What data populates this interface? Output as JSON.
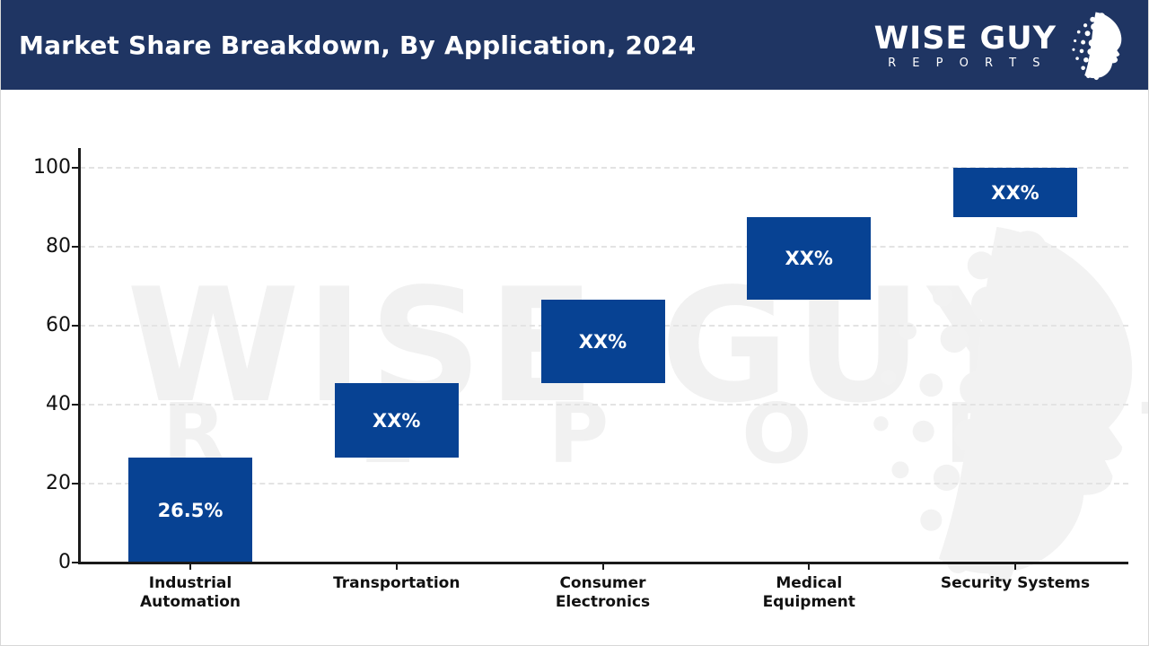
{
  "header": {
    "title": "Market Share Breakdown, By Application, 2024",
    "background_color": "#1f3563",
    "logo": {
      "line1": "WISE GUY",
      "line2": "R E P O R T S"
    }
  },
  "watermark": {
    "line1": "WISE GUY",
    "line2": "R E P O R T S"
  },
  "chart_data": {
    "type": "bar",
    "subtype": "waterfall",
    "title": "Market Share Breakdown, By Application, 2024",
    "categories": [
      "Industrial Automation",
      "Transportation",
      "Consumer Electronics",
      "Medical Equipment",
      "Security Systems"
    ],
    "segments": [
      {
        "category": "Industrial Automation",
        "start": 0,
        "end": 26.5,
        "label": "26.5%"
      },
      {
        "category": "Transportation",
        "start": 26.5,
        "end": 45.5,
        "label": "XX%"
      },
      {
        "category": "Consumer Electronics",
        "start": 45.5,
        "end": 66.5,
        "label": "XX%"
      },
      {
        "category": "Medical Equipment",
        "start": 66.5,
        "end": 87.5,
        "label": "XX%"
      },
      {
        "category": "Security Systems",
        "start": 87.5,
        "end": 100,
        "label": "XX%"
      }
    ],
    "xlabel": "",
    "ylabel": "",
    "ylim": [
      0,
      100
    ],
    "yticks": [
      0,
      20,
      40,
      60,
      80,
      100
    ],
    "grid": {
      "axis": "y",
      "style": "dashed",
      "color": "#e3e3e3"
    },
    "legend": "none",
    "bar_color": "#074293",
    "bar_label_color": "#ffffff",
    "axis_color": "#1a1a1a",
    "tick_label_color": "#111111"
  }
}
